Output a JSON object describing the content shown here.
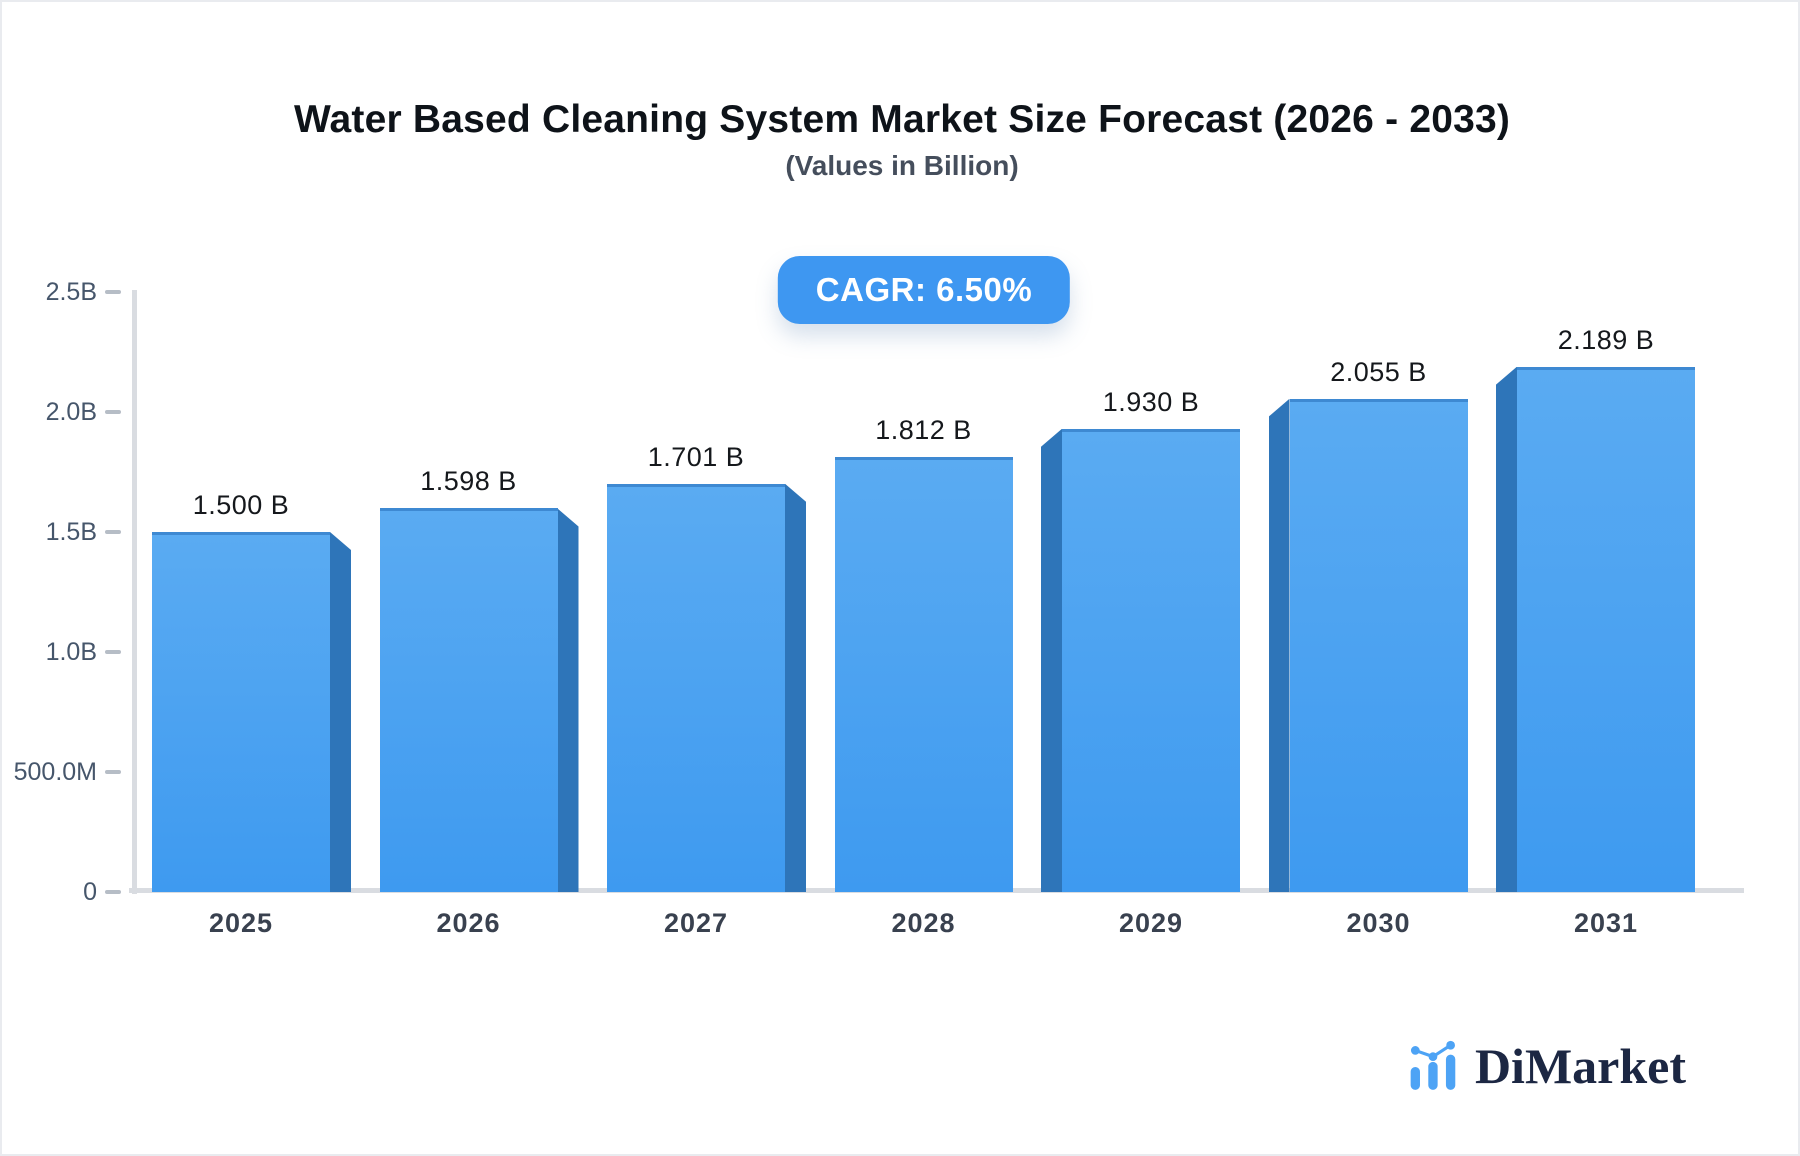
{
  "header": {
    "title": "Water Based Cleaning System Market Size Forecast (2026 - 2033)",
    "subtitle": "(Values in Billion)",
    "cagr_badge": "CAGR: 6.50%"
  },
  "chart_data": {
    "type": "bar",
    "title": "Water Based Cleaning System Market Size Forecast (2026 - 2033)",
    "subtitle": "(Values in Billion)",
    "cagr": "6.50%",
    "categories": [
      "2025",
      "2026",
      "2027",
      "2028",
      "2029",
      "2030",
      "2031"
    ],
    "values": [
      1.5,
      1.598,
      1.701,
      1.812,
      1.93,
      2.055,
      2.189
    ],
    "value_labels": [
      "1.500 B",
      "1.598 B",
      "1.701 B",
      "1.812 B",
      "1.930 B",
      "2.055 B",
      "2.189 B"
    ],
    "ytick_labels": [
      "0",
      "500.0M",
      "1.0B",
      "1.5B",
      "2.0B",
      "2.5B"
    ],
    "ytick_values": [
      0,
      0.5,
      1.0,
      1.5,
      2.0,
      2.5
    ],
    "ylim": [
      0,
      2.5
    ],
    "xlabel": "",
    "ylabel": "",
    "grid": false,
    "legend_position": "none",
    "style": "3d-perspective-bars",
    "colors": {
      "bar_top": "#5aabf2",
      "bar_bottom": "#3e9af0",
      "bar_cap": "#3e89d2",
      "bar_side": "#2e75b9",
      "badge_bg": "#3e97f1",
      "axis_line": "#d9dce1",
      "tick": "#b6bdc6",
      "label_text": "#15181c"
    }
  },
  "footer": {
    "brand": "DiMarket",
    "brand_icon": "bar-chart-trend-icon"
  }
}
